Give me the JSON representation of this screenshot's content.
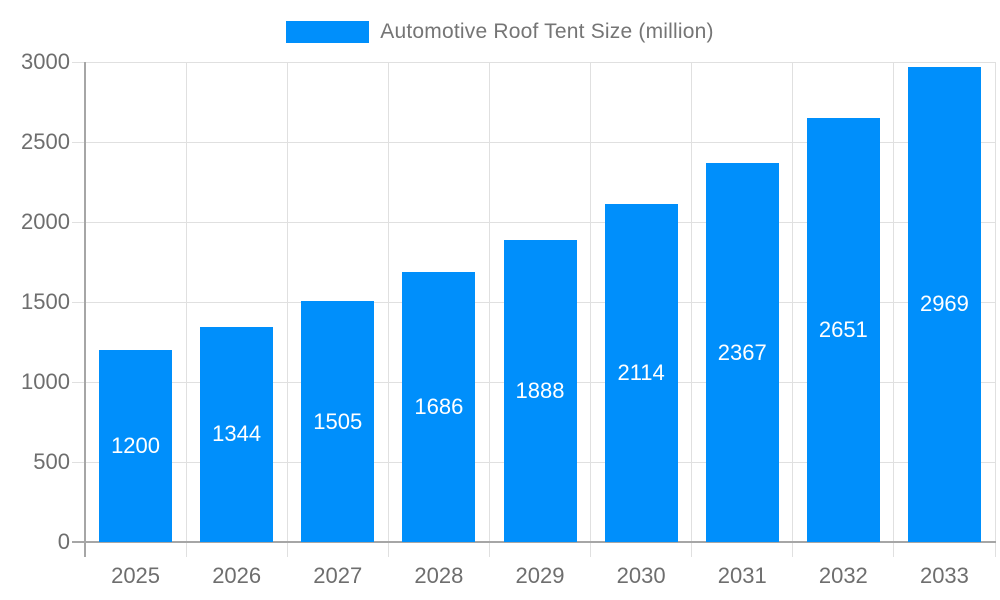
{
  "chart_data": {
    "type": "bar",
    "title": "Automotive Roof Tent Size (million)",
    "categories": [
      "2025",
      "2026",
      "2027",
      "2028",
      "2029",
      "2030",
      "2031",
      "2032",
      "2033"
    ],
    "series": [
      {
        "name": "Automotive Roof Tent Size (million)",
        "values": [
          1200,
          1344,
          1505,
          1686,
          1888,
          2114,
          2367,
          2651,
          2969
        ]
      }
    ],
    "xlabel": "",
    "ylabel": "",
    "ylim": [
      0,
      3000
    ],
    "ytick_step": 500,
    "ytick_labels": [
      "0",
      "500",
      "1000",
      "1500",
      "2000",
      "2500",
      "3000"
    ],
    "grid": true,
    "legend_position": "top",
    "value_label_position": "inside-center",
    "colors": {
      "bar": "#008FFB",
      "value_label": "#FFFFFF",
      "grid_line": "#E0E0E0",
      "tick": "#E0E0E0",
      "axis_line": "#A6A6A6",
      "axis_label_text": "#6E6E6E",
      "legend_text": "#757575",
      "background": "#FFFFFF"
    }
  }
}
